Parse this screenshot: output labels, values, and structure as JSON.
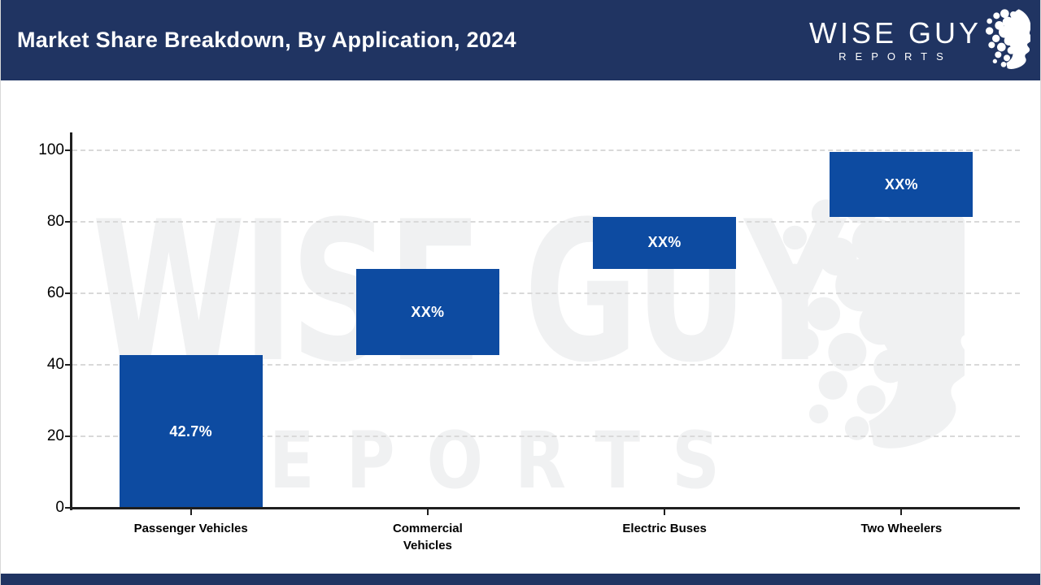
{
  "header": {
    "title": "Market Share Breakdown, By Application, 2024",
    "logo_line1": "WISE GUY",
    "logo_line2": "REPORTS"
  },
  "watermark": {
    "line1": "WISE GUY",
    "line2": "REPORTS"
  },
  "chart_data": {
    "type": "bar",
    "subtype": "waterfall",
    "title": "Market Share Breakdown, By Application, 2024",
    "categories": [
      "Passenger Vehicles",
      "Commercial\nVehicles",
      "Electric Buses",
      "Two Wheelers"
    ],
    "series": [
      {
        "name": "Market Share %",
        "base": [
          0,
          42.7,
          66.8,
          81.4
        ],
        "top": [
          42.7,
          66.8,
          81.4,
          99.5
        ]
      }
    ],
    "bar_labels": [
      "42.7%",
      "XX%",
      "XX%",
      "XX%"
    ],
    "xlabel": "",
    "ylabel": "",
    "ylim": [
      0,
      100
    ],
    "yticks": [
      0,
      20,
      40,
      60,
      80,
      100
    ],
    "grid": "horizontal-dashed",
    "legend": "none",
    "bar_color": "#0d4ba1",
    "bar_label_color": "#ffffff",
    "grid_color": "#d9d9d9",
    "axis_color": "#1f1f1f"
  },
  "colors": {
    "header_bg": "#203462",
    "footer_bg": "#203462",
    "watermark": "#f0f1f2",
    "page_bg": "#ffffff"
  }
}
